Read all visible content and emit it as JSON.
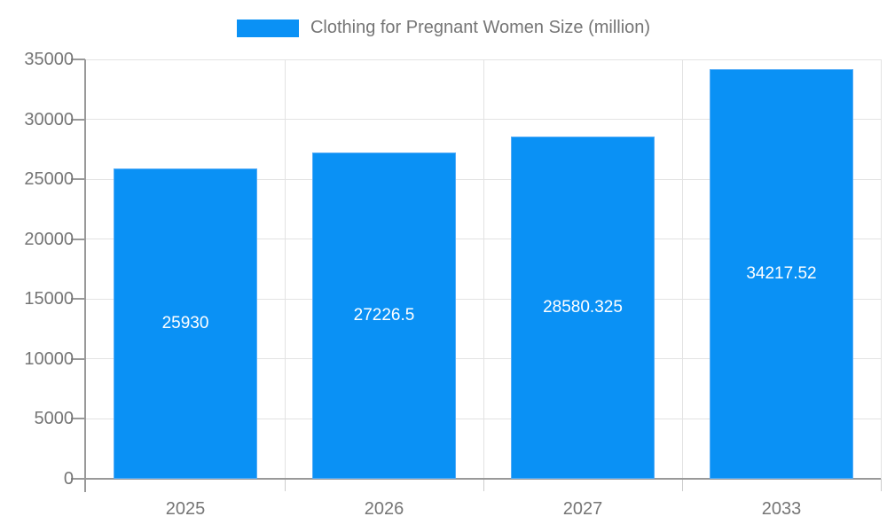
{
  "chart_data": {
    "type": "bar",
    "title": "Clothing for Pregnant Women Size (million)",
    "categories": [
      "2025",
      "2026",
      "2027",
      "2033"
    ],
    "values": [
      25930,
      27226.5,
      28580.325,
      34217.52
    ],
    "value_labels": [
      "25930",
      "27226.5",
      "28580.325",
      "34217.52"
    ],
    "xlabel": "",
    "ylabel": "",
    "ylim": [
      0,
      35000
    ],
    "yticks": [
      0,
      5000,
      10000,
      15000,
      20000,
      25000,
      30000,
      35000
    ],
    "grid": true,
    "legend": {
      "position": "top-center",
      "label": "Clothing for Pregnant Women Size (million)"
    },
    "colors": {
      "bar": "#0a91f5",
      "bar_edge": "#54acf7",
      "grid": "#e3e3e3",
      "axis": "#999999",
      "tick_minor": "#cccccc",
      "text": "#757575",
      "bar_label": "#ffffff",
      "background": "#ffffff"
    }
  }
}
